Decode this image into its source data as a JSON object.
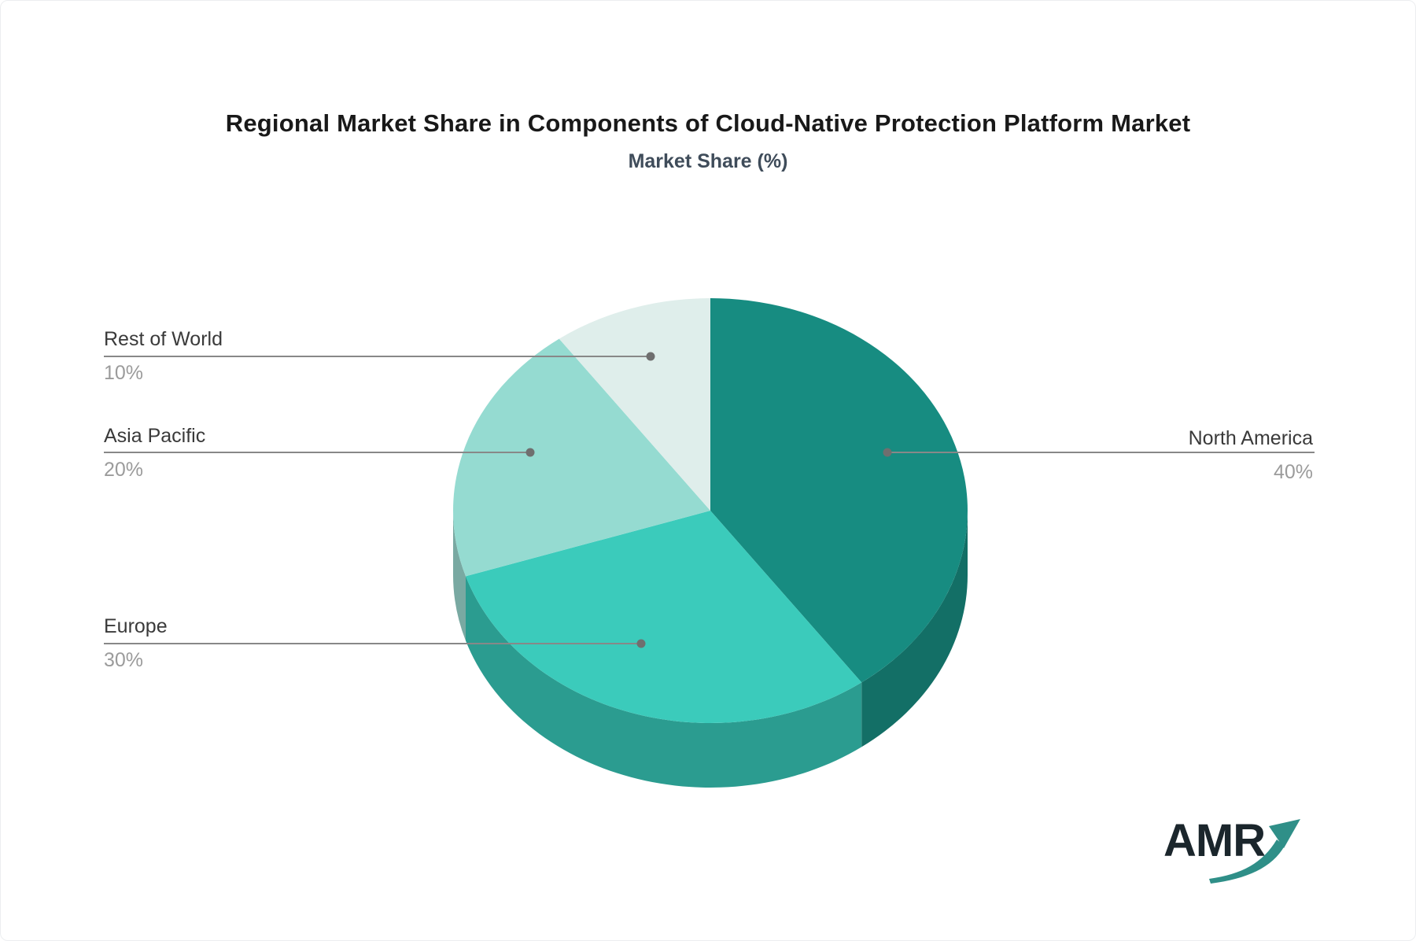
{
  "header": {
    "title": "Regional Market Share in Components of Cloud-Native Protection Platform Market",
    "subtitle": "Market Share (%)"
  },
  "chart_data": {
    "type": "pie",
    "title": "Regional Market Share in Components of Cloud-Native Protection Platform Market",
    "subtitle": "Market Share (%)",
    "unit": "%",
    "style": "3d-pie",
    "direction": "clockwise",
    "start_angle_deg": 0,
    "legend_position": "connector-labels",
    "categories": [
      "North America",
      "Europe",
      "Asia Pacific",
      "Rest of World"
    ],
    "values": [
      40,
      30,
      20,
      10
    ],
    "slices": [
      {
        "label": "North America",
        "value": 40,
        "pct_text": "40%",
        "color": "#178c81",
        "side_color": "#136f66",
        "label_side": "right"
      },
      {
        "label": "Europe",
        "value": 30,
        "pct_text": "30%",
        "color": "#3bcbbb",
        "side_color": "#2b9c90",
        "label_side": "left"
      },
      {
        "label": "Asia Pacific",
        "value": 20,
        "pct_text": "20%",
        "color": "#95dbd1",
        "side_color": "#79a9a2",
        "label_side": "left"
      },
      {
        "label": "Rest of World",
        "value": 10,
        "pct_text": "10%",
        "color": "#dfeeeb",
        "side_color": "#b9cdc9",
        "label_side": "left"
      }
    ]
  },
  "logo": {
    "text": "AMR",
    "text_color": "#1b262c",
    "arrow_color": "#2f8f88"
  },
  "colors": {
    "leader_line": "#888888",
    "dot": "#6f6f6f",
    "label_text": "#3a3a3a",
    "pct_text": "#9b9b9b",
    "title": "#191919",
    "subtitle": "#3f4c5a",
    "background": "#ffffff"
  }
}
